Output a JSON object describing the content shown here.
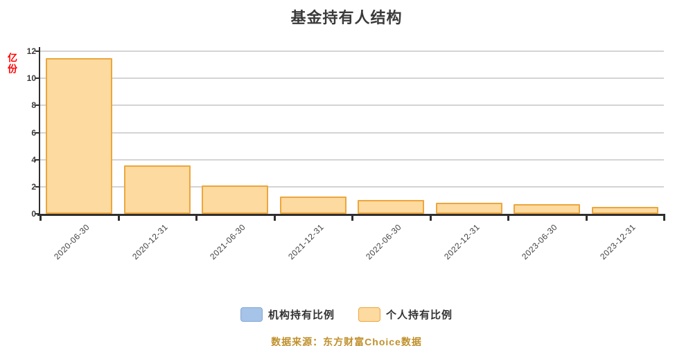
{
  "title": "基金持有人结构",
  "chart_data": {
    "type": "bar",
    "title": "基金持有人结构",
    "categories": [
      "2020-06-30",
      "2020-12-31",
      "2021-06-30",
      "2021-12-31",
      "2022-06-30",
      "2022-12-31",
      "2023-06-30",
      "2023-12-31"
    ],
    "values": [
      11.5,
      3.6,
      2.1,
      1.3,
      1.0,
      0.8,
      0.7,
      0.5
    ],
    "xlabel": "",
    "ylabel": "亿份",
    "ylim": [
      0,
      12
    ],
    "yticks": [
      0,
      2,
      4,
      6,
      8,
      10,
      12
    ],
    "grid": true,
    "x_label_rotation": 45,
    "legend_position": "bottom"
  },
  "legend": {
    "items": [
      {
        "label": "机构持有比例",
        "color": "#a6c3e8"
      },
      {
        "label": "个人持有比例",
        "color": "#fcdaa0"
      }
    ]
  },
  "footer": {
    "source_text": "数据来源：东方财富Choice数据"
  },
  "colors": {
    "bar_fill": "#fcdaa0",
    "bar_border": "#eca63e",
    "legend_blue": "#a6c3e8",
    "grid": "#d4d4d4",
    "axis": "#2f2f2f",
    "text": "#3c3c3c",
    "unit_label_red": "#ff0000",
    "source_gold": "#c0902c",
    "background": "#ffffff"
  }
}
